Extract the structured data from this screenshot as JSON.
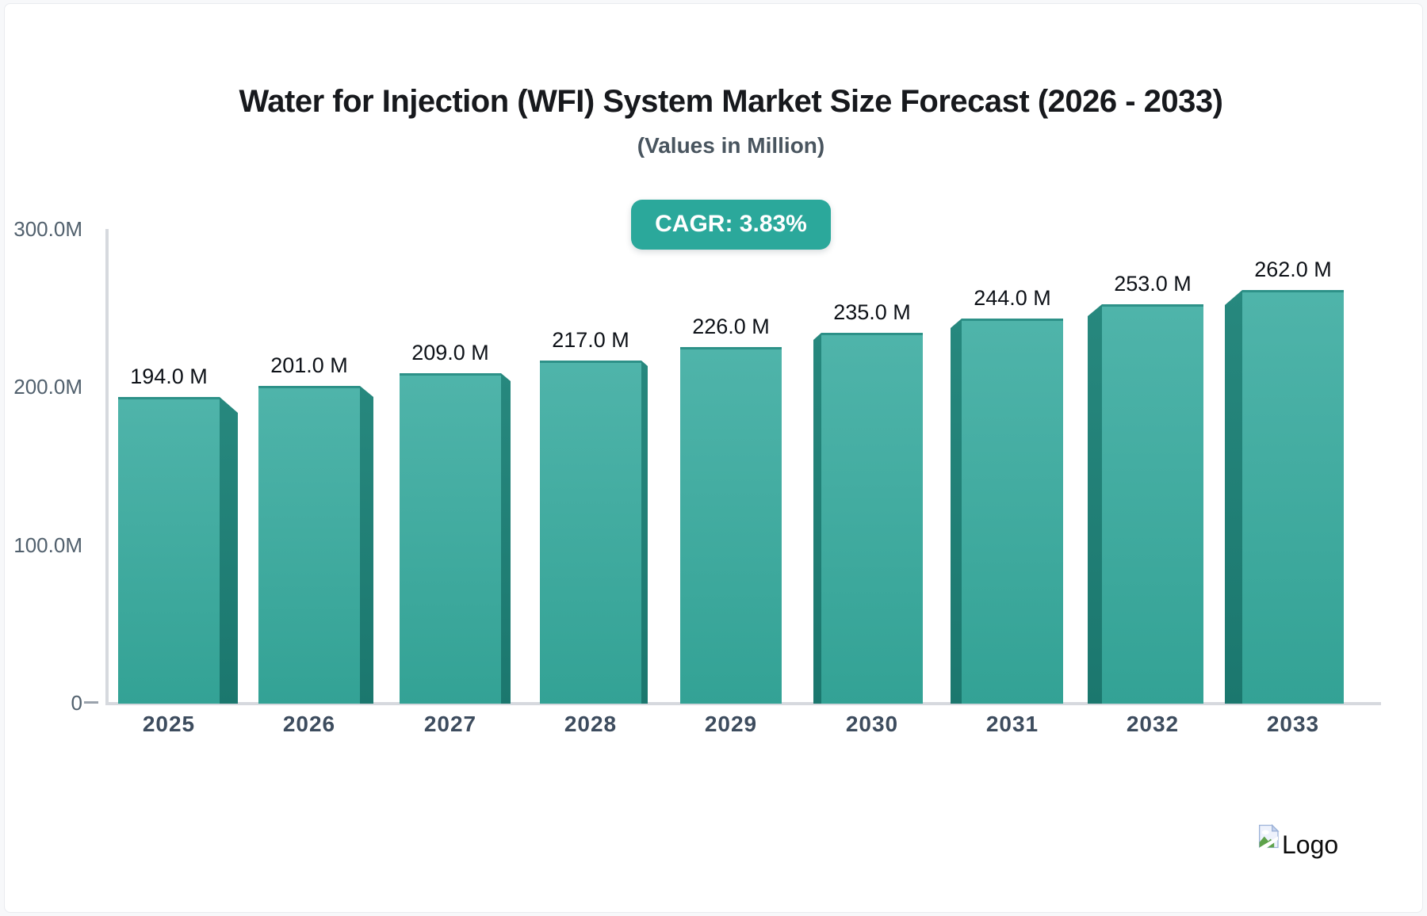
{
  "header": {
    "title": "Water for Injection (WFI) System Market Size Forecast (2026 - 2033)",
    "subtitle": "(Values in Million)"
  },
  "badge": {
    "label": "CAGR: 3.83%"
  },
  "chart_data": {
    "type": "bar",
    "title": "Water for Injection (WFI) System Market Size Forecast (2026 - 2033)",
    "subtitle": "(Values in Million)",
    "categories": [
      "2025",
      "2026",
      "2027",
      "2028",
      "2029",
      "2030",
      "2031",
      "2032",
      "2033"
    ],
    "values": [
      194,
      201,
      209,
      217,
      226,
      235,
      244,
      253,
      262
    ],
    "bar_labels": [
      "194.0 M",
      "201.0 M",
      "209.0 M",
      "217.0 M",
      "226.0 M",
      "235.0 M",
      "244.0 M",
      "253.0 M",
      "262.0 M"
    ],
    "ylim": [
      0,
      300
    ],
    "yticks": [
      300,
      200,
      100,
      0
    ],
    "ytick_labels": [
      "300.0M",
      "200.0M",
      "100.0M",
      "0"
    ],
    "grid": false,
    "legend": false,
    "style_3d": true,
    "colors": {
      "accent": "#2ba89b",
      "bar_top": "#4fb4aa",
      "bar_bottom": "#33a295",
      "bar_edge": "#2d9188",
      "bar_side_light": "#27887e",
      "bar_side_dark": "#1b776e",
      "axis_line": "#d6d9de"
    }
  },
  "footer": {
    "logo_alt": "Logo"
  }
}
